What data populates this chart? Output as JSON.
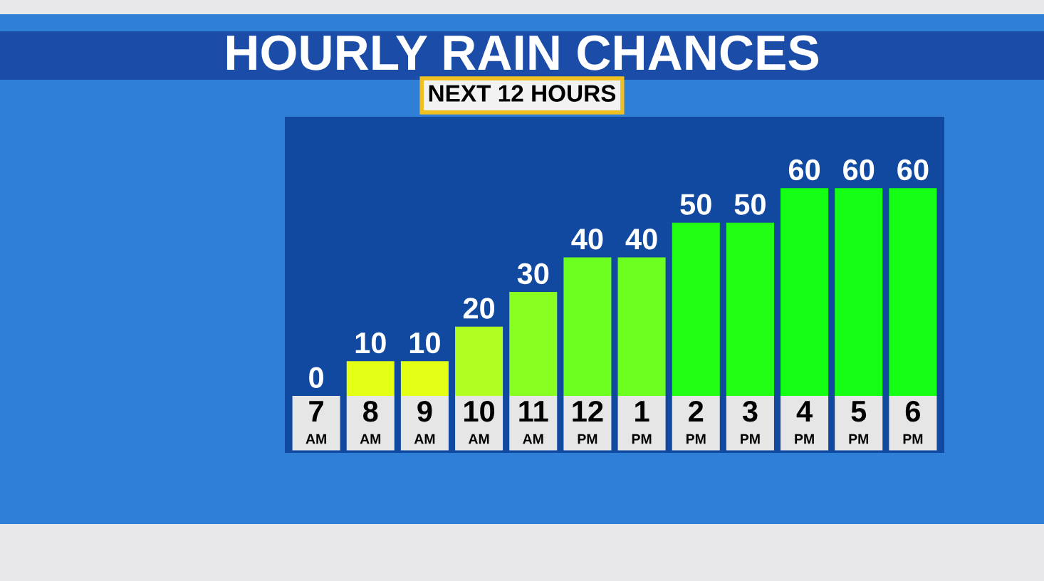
{
  "chart_data": {
    "type": "bar",
    "title": "HOURLY RAIN CHANCES",
    "subtitle": "NEXT 12 HOURS",
    "categories": [
      "7\nAM",
      "8\nAM",
      "9\nAM",
      "10\nAM",
      "11\nAM",
      "12\nPM",
      "1\nPM",
      "2\nPM",
      "3\nPM",
      "4\nPM",
      "5\nPM",
      "6\nPM"
    ],
    "values": [
      0,
      10,
      10,
      20,
      30,
      40,
      40,
      50,
      50,
      60,
      60,
      60
    ],
    "colors": [
      "#f0f000",
      "#e2ff14",
      "#e2ff14",
      "#b0ff20",
      "#88ff20",
      "#6cff20",
      "#6cff20",
      "#22ff14",
      "#22ff14",
      "#14ff14",
      "#14ff14",
      "#14ff14"
    ],
    "data_labels": true,
    "grid": false,
    "legend": false
  }
}
